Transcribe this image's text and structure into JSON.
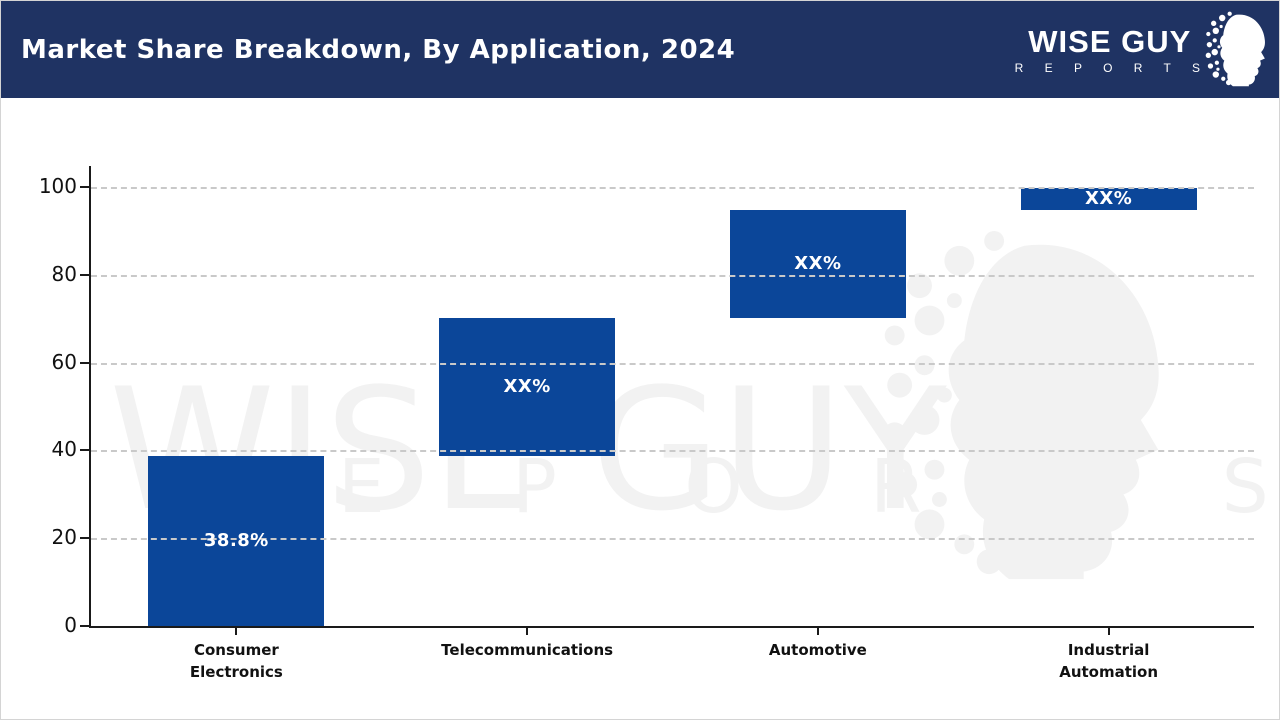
{
  "header": {
    "title": "Market Share Breakdown, By Application, 2024",
    "logo": {
      "line1": "WISE GUY",
      "line2": "R E P O R T S"
    }
  },
  "watermark": {
    "line1": "WISE GUY",
    "line2": "R E P O R T S"
  },
  "colors": {
    "header_bg": "#1f3363",
    "bar": "#0b4699",
    "grid": "#c9c9c9",
    "axis": "#1a1a1a",
    "bar_label_text": "#ffffff",
    "watermark": "#f2f2f2",
    "border": "#d4d4d4"
  },
  "chart_data": {
    "type": "bar",
    "subtype": "waterfall",
    "title": "Market Share Breakdown, By Application, 2024",
    "xlabel": "",
    "ylabel": "",
    "ylim": [
      0,
      104.8
    ],
    "yticks": [
      0,
      20,
      40,
      60,
      80,
      100
    ],
    "grid": "dashed horizontal",
    "legend": "none",
    "categories": [
      "Consumer Electronics",
      "Telecommunications",
      "Automotive",
      "Industrial Automation"
    ],
    "segments": [
      {
        "name": "Consumer Electronics",
        "lines": [
          "Consumer",
          "Electronics"
        ],
        "start": 0,
        "end": 38.8,
        "value": 38.8,
        "label": "38.8%"
      },
      {
        "name": "Telecommunications",
        "lines": [
          "Telecommunications"
        ],
        "start": 38.8,
        "end": 70.2,
        "value": 31.4,
        "label": "XX%"
      },
      {
        "name": "Automotive",
        "lines": [
          "Automotive"
        ],
        "start": 70.2,
        "end": 94.8,
        "value": 24.6,
        "label": "XX%"
      },
      {
        "name": "Industrial Automation",
        "lines": [
          "Industrial",
          "Automation"
        ],
        "start": 94.8,
        "end": 99.8,
        "value": 5.0,
        "label": "XX%"
      }
    ]
  }
}
